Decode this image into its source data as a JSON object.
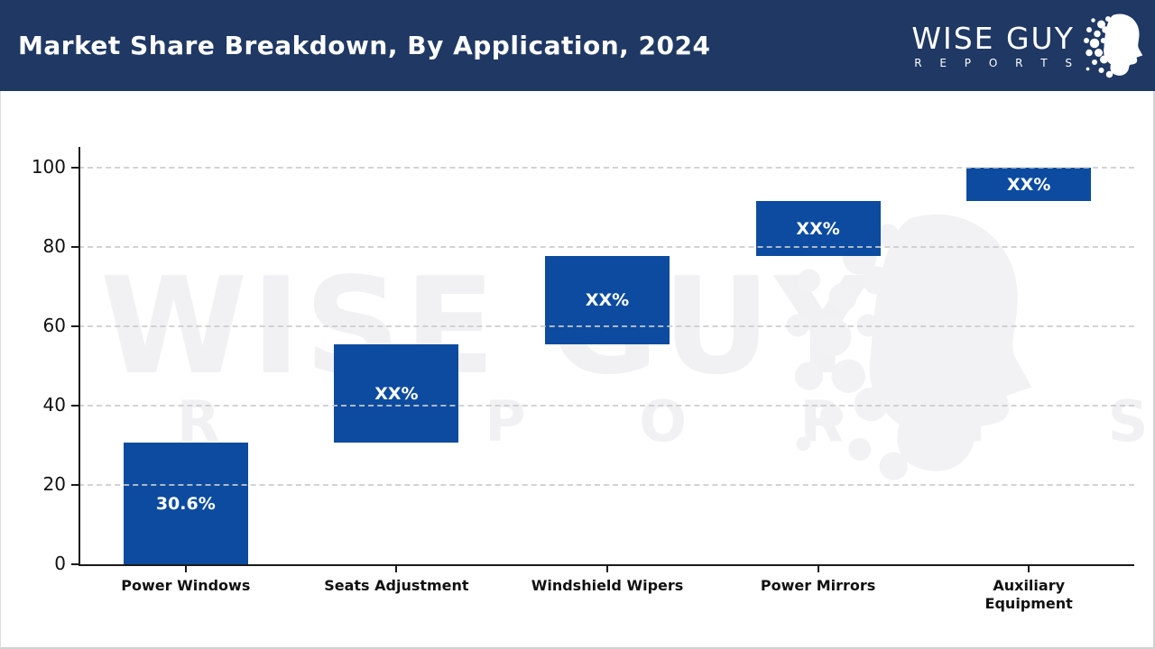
{
  "header": {
    "title": "Market Share Breakdown, By Application, 2024",
    "logo": {
      "wordmark": "WISE GUY",
      "subtext": "R E P O R T S"
    }
  },
  "watermark": {
    "wordmark": "WISE GUY",
    "subtext": "R E P O R T S"
  },
  "chart_data": {
    "type": "bar",
    "variant": "waterfall",
    "title": "Market Share Breakdown, By Application, 2024",
    "xlabel": "",
    "ylabel": "",
    "ylim": [
      0,
      105
    ],
    "yticks": [
      0,
      20,
      40,
      60,
      80,
      100
    ],
    "grid": {
      "horizontal": true,
      "style": "dashed"
    },
    "legend": "none",
    "bar_color": "#0c4b9f",
    "value_label_color": "#ffffff",
    "categories": [
      "Power Windows",
      "Seats Adjustment",
      "Windshield Wipers",
      "Power Mirrors",
      "Auxiliary Equipment"
    ],
    "segments": [
      {
        "category": "Power Windows",
        "tick_label": "Power Windows",
        "start": 0,
        "end": 30.6,
        "value_label": "30.6%"
      },
      {
        "category": "Seats Adjustment",
        "tick_label": "Seats Adjustment",
        "start": 30.6,
        "end": 55.5,
        "value_label": "XX%"
      },
      {
        "category": "Windshield Wipers",
        "tick_label": "Windshield Wipers",
        "start": 55.5,
        "end": 77.7,
        "value_label": "XX%"
      },
      {
        "category": "Power Mirrors",
        "tick_label": "Power Mirrors",
        "start": 77.7,
        "end": 91.5,
        "value_label": "XX%"
      },
      {
        "category": "Auxiliary Equipment",
        "tick_label": "Auxiliary\nEquipment",
        "start": 91.5,
        "end": 100,
        "value_label": "XX%"
      }
    ]
  }
}
